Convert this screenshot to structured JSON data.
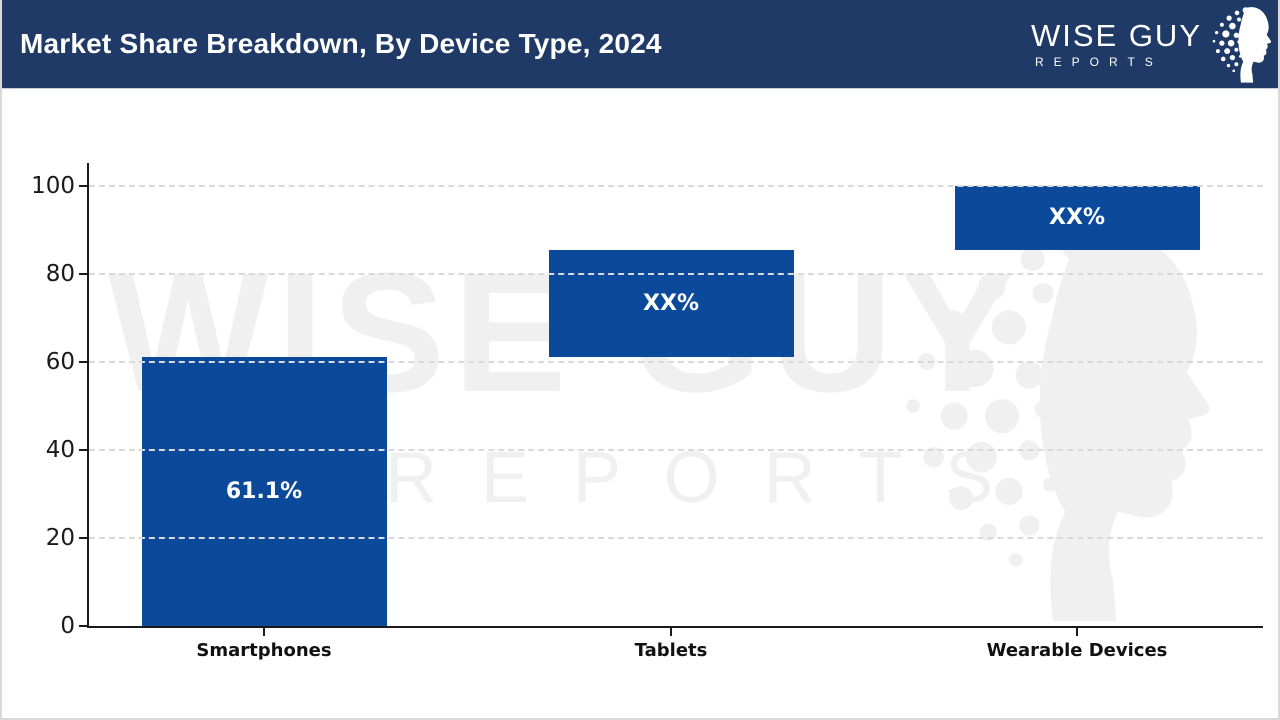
{
  "header": {
    "title": "Market Share Breakdown, By Device Type, 2024",
    "bg_color": "#1f3a66",
    "logo": {
      "name": "Wise Guy Reports",
      "line1": "WISE GUY",
      "line2": "REPORTS",
      "icon": "dotted-head-profile-icon"
    }
  },
  "watermark": {
    "line1": "WISE GUY",
    "line2": "R E P O R T S",
    "color": "#f0f0f0",
    "icon": "dotted-head-profile-icon"
  },
  "chart_data": {
    "type": "bar",
    "variant": "waterfall-segments",
    "title": "Market Share Breakdown, By Device Type, 2024",
    "categories": [
      "Smartphones",
      "Tablets",
      "Wearable Devices"
    ],
    "series": [
      {
        "name": "Market share (%)",
        "segments": [
          {
            "category": "Smartphones",
            "start": 0,
            "end": 61.1,
            "label": "61.1%"
          },
          {
            "category": "Tablets",
            "start": 61.1,
            "end": 85.4,
            "label": "XX%"
          },
          {
            "category": "Wearable Devices",
            "start": 85.4,
            "end": 100,
            "label": "XX%"
          }
        ]
      }
    ],
    "ylim": [
      0,
      100
    ],
    "yticks": [
      0,
      20,
      40,
      60,
      80,
      100
    ],
    "xlabel": "",
    "ylabel": "",
    "grid": {
      "horizontal": true,
      "style": "dashed",
      "color": "#d9d9d9",
      "above_bars": true
    },
    "legend": "none",
    "bar_color": "#0b4a9b",
    "bar_label_color": "#ffffff",
    "axis_color": "#1a1a1a"
  }
}
